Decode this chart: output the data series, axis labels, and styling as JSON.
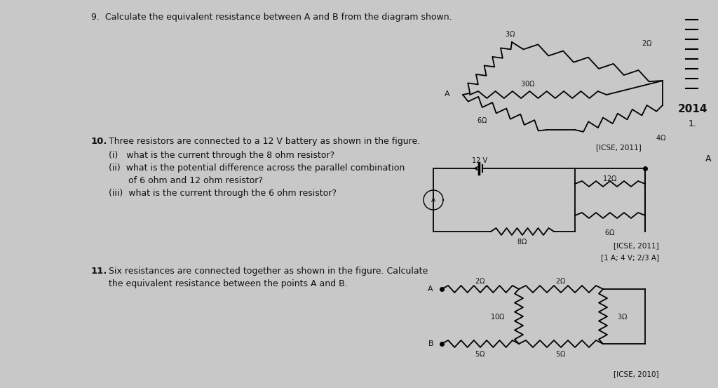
{
  "bg_color": "#c8c8c8",
  "text_color": "#111111",
  "title_q9": "9.  Calculate the equivalent resistance between A and B from the diagram shown.",
  "q10_num": "10.",
  "q10_text1": "Three resistors are connected to a 12 V battery as shown in the figure.",
  "q10_i": "(i)   what is the current through the 8 ohm resistor?",
  "q10_ii_a": "(ii)  what is the potential difference across the parallel combination",
  "q10_ii_b": "       of 6 ohm and 12 ohm resistor?",
  "q10_iii": "(iii)  what is the current through the 6 ohm resistor?",
  "q11_num": "11.",
  "q11_text1": "Six resistances are connected together as shown in the figure. Calculate",
  "q11_text2": "the equivalent resistance between the points A and B.",
  "icse_2011": "[ICSE, 2011]",
  "icse_2011b": "[ICSE, 2011]",
  "ans_q10": "[1 A; 4 V; 2/3 A]",
  "icse_2010": "[ICSE, 2010]",
  "sidebar_2014": "2014",
  "sidebar_1": "1.",
  "sidebar_A": "A"
}
